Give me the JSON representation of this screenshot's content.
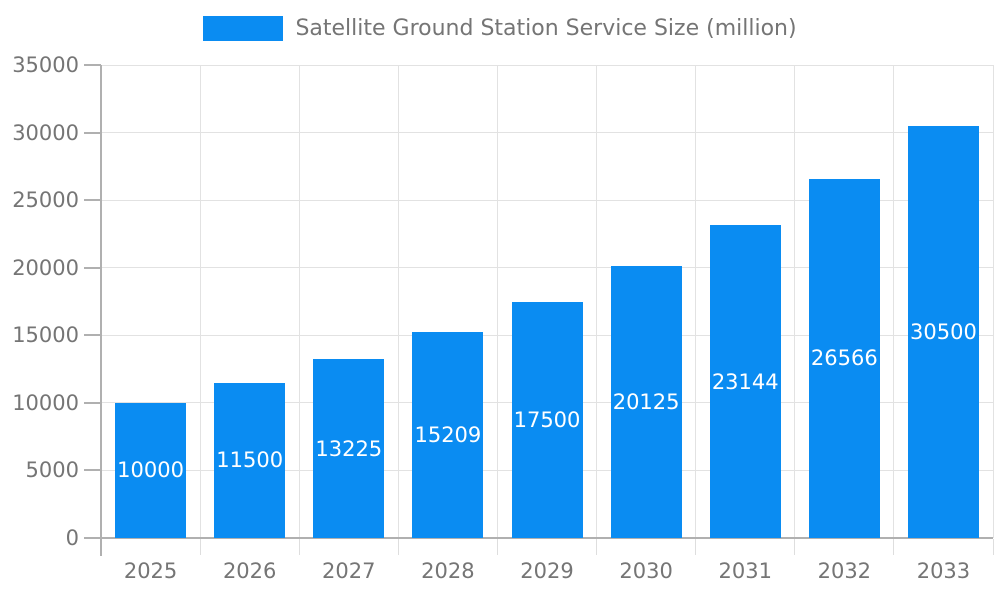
{
  "legend": {
    "label": "Satellite Ground Station Service Size (million)"
  },
  "colors": {
    "bar": "#0a8cf2",
    "legend_text": "#757575",
    "axis_text": "#757575",
    "value_label_text": "#ffffff",
    "grid_line": "#e2e2e2",
    "axis_line": "#b0b0b0",
    "x_tick_line": "#dedede",
    "background": "#ffffff"
  },
  "chart_data": {
    "type": "bar",
    "title": "Satellite Ground Station Service Size (million)",
    "categories": [
      "2025",
      "2026",
      "2027",
      "2028",
      "2029",
      "2030",
      "2031",
      "2032",
      "2033"
    ],
    "values": [
      10000,
      11500,
      13225,
      15209,
      17500,
      20125,
      23144,
      26566,
      30500
    ],
    "series_name": "Satellite Ground Station Service Size (million)",
    "xlabel": "",
    "ylabel": "",
    "ylim": [
      0,
      35000
    ],
    "yticks": [
      0,
      5000,
      10000,
      15000,
      20000,
      25000,
      30000,
      35000
    ],
    "grid": true,
    "legend_position": "top-center",
    "value_label_position": "inside-middle"
  }
}
